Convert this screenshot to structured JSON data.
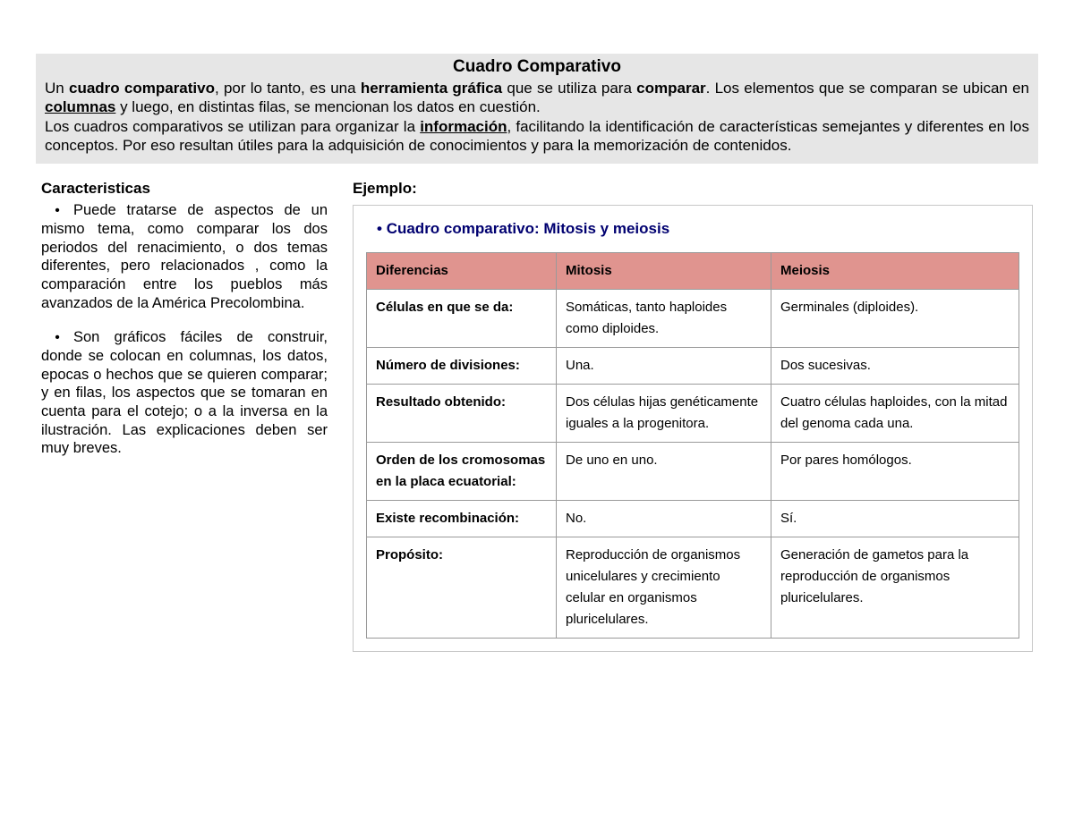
{
  "intro": {
    "title": "Cuadro Comparativo",
    "p1_a": "Un ",
    "p1_b": "cuadro comparativo",
    "p1_c": ", por lo tanto, es una ",
    "p1_d": "herramienta gráfica",
    "p1_e": " que se utiliza para ",
    "p1_f": "comparar",
    "p1_g": ". Los elementos que se comparan se ubican en ",
    "p1_h": "columnas",
    "p1_i": " y luego, en distintas filas, se mencionan los datos en cuestión.",
    "p2_a": "Los cuadros comparativos se utilizan para organizar la ",
    "p2_b": "información",
    "p2_c": ", facilitando la identificación de características semejantes y diferentes en los conceptos. Por eso resultan útiles para la adquisición de conocimientos y para la memorización de contenidos."
  },
  "left": {
    "heading": "Caracteristicas",
    "bullet1": "Puede tratarse de aspectos de un mismo tema, como comparar los dos periodos del renacimiento, o dos temas diferentes, pero relacionados , como la comparación entre los pueblos más avanzados de la América Precolombina.",
    "bullet2": "Son gráficos fáciles  de construir, donde se colocan en columnas, los datos, epocas o hechos  que se quieren comparar; y en filas, los aspectos que se tomaran en cuenta para el cotejo; o a la inversa en la ilustración. Las explicaciones deben ser muy breves."
  },
  "example": {
    "heading": "Ejemplo:",
    "title": "Cuadro comparativo: Mitosis y meiosis",
    "table": {
      "type": "table",
      "header_bg": "#e0948f",
      "border_color": "#9a9a9a",
      "columns": [
        "Diferencias",
        "Mitosis",
        "Meiosis"
      ],
      "rows": [
        [
          "Células en que se da:",
          "Somáticas, tanto haploides como diploides.",
          "Germinales (diploides)."
        ],
        [
          "Número de divisiones:",
          "Una.",
          "Dos sucesivas."
        ],
        [
          "Resultado obtenido:",
          "Dos células hijas genéticamente iguales a la progenitora.",
          "Cuatro células haploides, con la mitad del genoma cada una."
        ],
        [
          "Orden de los cromosomas en la placa ecuatorial:",
          "De uno en uno.",
          "Por pares homólogos."
        ],
        [
          "Existe recombinación:",
          "No.",
          "Sí."
        ],
        [
          "Propósito:",
          "Reproducción de organismos unicelulares y crecimiento celular en organismos pluricelulares.",
          "Generación de gametos para la reproducción de organismos pluricelulares."
        ]
      ]
    }
  },
  "colors": {
    "intro_bg": "#e6e6e6",
    "example_title": "#000070",
    "page_bg": "#ffffff"
  }
}
